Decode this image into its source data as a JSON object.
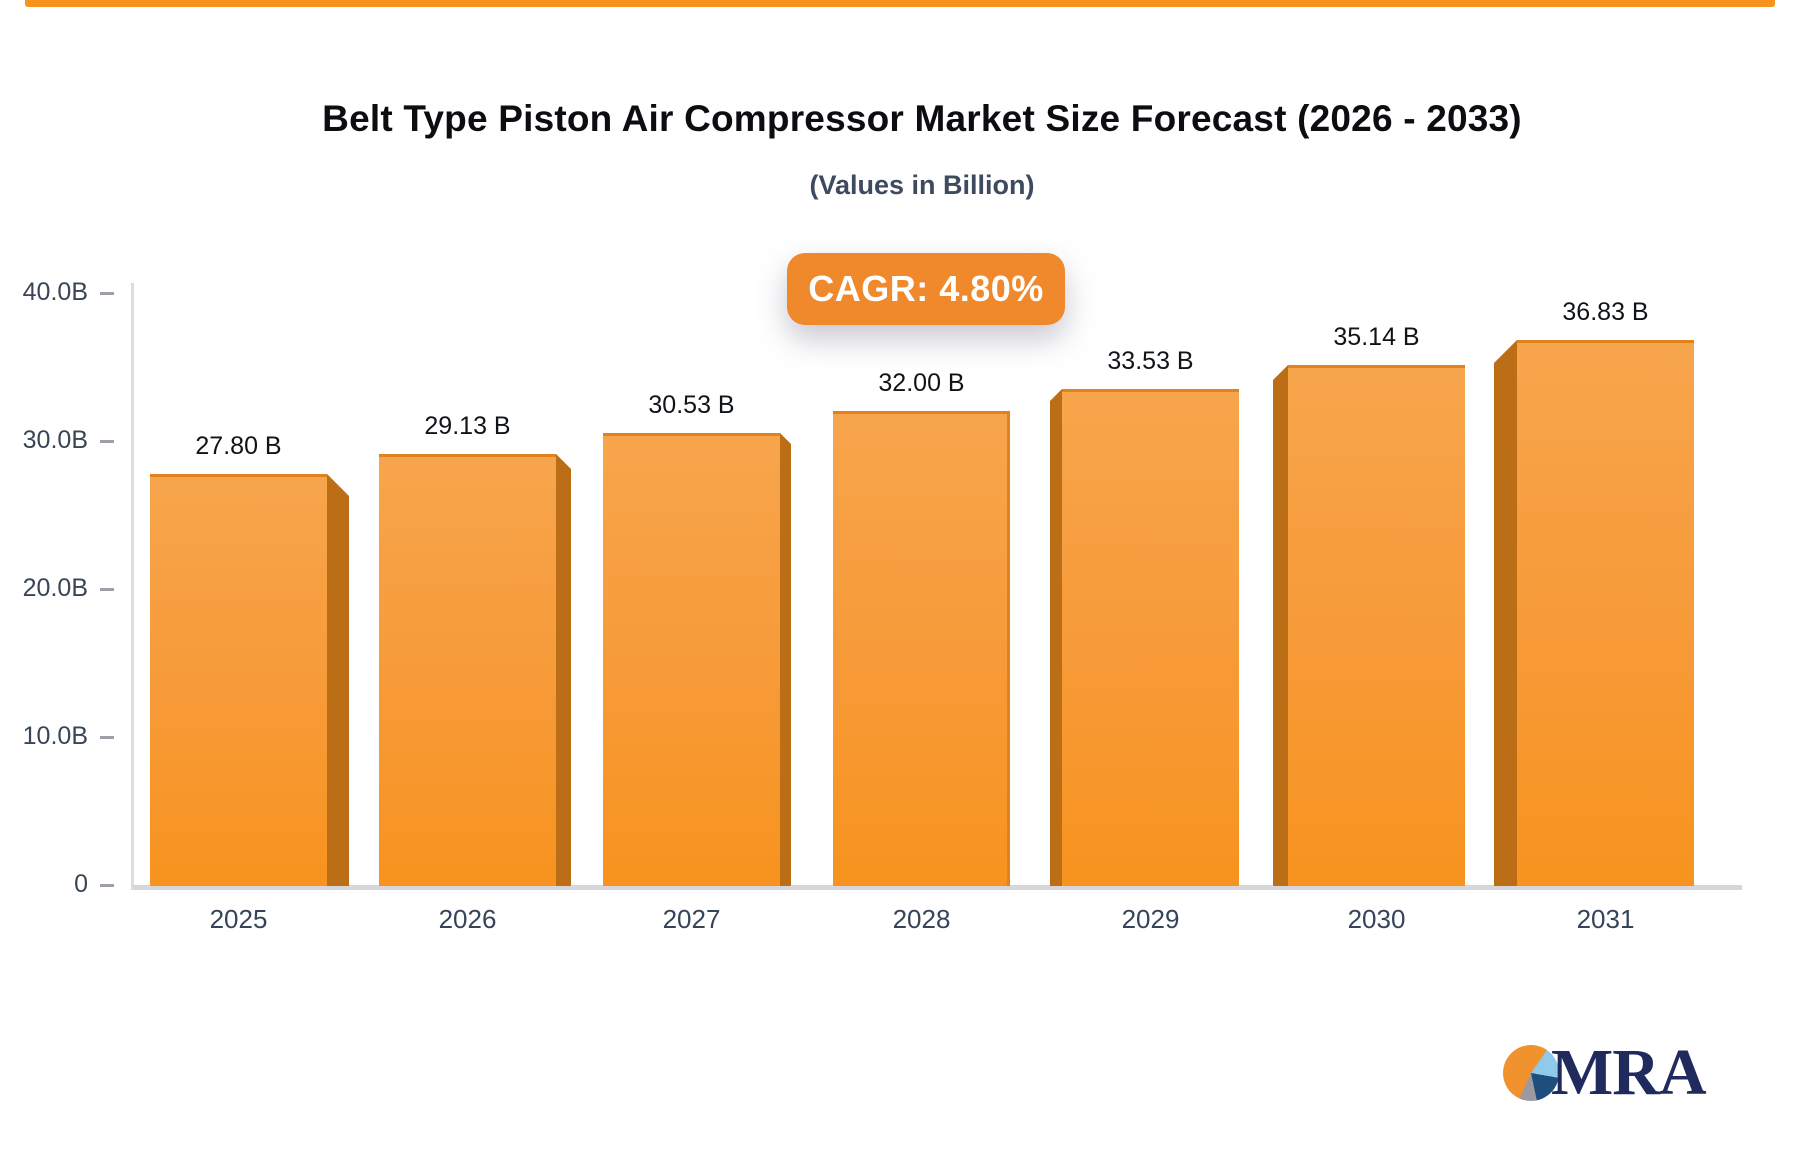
{
  "page": {
    "top_strip_color": "#F7941E"
  },
  "header": {
    "title": "Belt Type Piston Air Compressor Market Size Forecast (2026 - 2033)",
    "subtitle": "(Values in Billion)"
  },
  "badge": {
    "label": "CAGR: 4.80%",
    "bg": "#F0882C"
  },
  "chart_data": {
    "type": "bar",
    "title": "Belt Type Piston Air Compressor Market Size Forecast (2026 - 2033)",
    "subtitle": "(Values in Billion)",
    "cagr": "4.80%",
    "categories": [
      "2025",
      "2026",
      "2027",
      "2028",
      "2029",
      "2030",
      "2031"
    ],
    "values": [
      27.8,
      29.13,
      30.53,
      32.0,
      33.53,
      35.14,
      36.83
    ],
    "value_labels": [
      "27.80 B",
      "29.13 B",
      "30.53 B",
      "32.00 B",
      "33.53 B",
      "35.14 B",
      "36.83 B"
    ],
    "xlabel": "",
    "ylabel": "",
    "ylim": [
      0,
      40
    ],
    "yticks": {
      "labels": [
        "40.0B",
        "30.0B",
        "20.0B",
        "10.0B",
        "0"
      ],
      "values": [
        40,
        30,
        20,
        10,
        0
      ]
    },
    "grid": false,
    "legend": false,
    "bar_color": "#F7931E",
    "bar_color_top": "#F7A54C",
    "bar_side_color": "#BC6E16",
    "axis_color": "#DCDCE1"
  },
  "logo": {
    "text": "MRA"
  }
}
